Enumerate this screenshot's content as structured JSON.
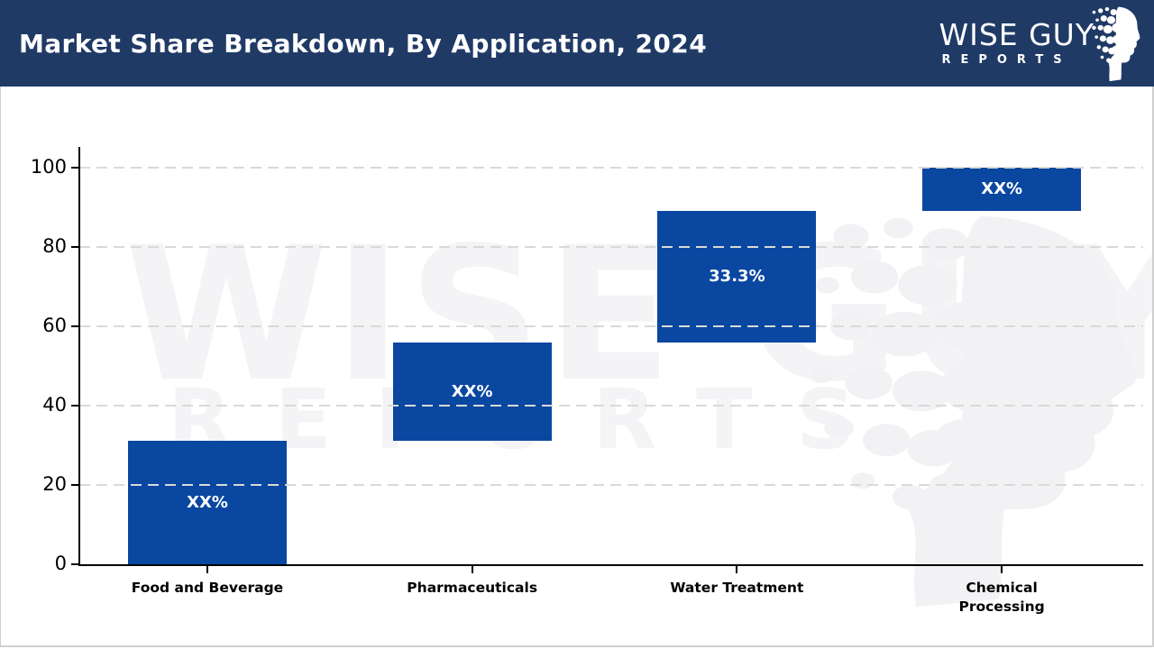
{
  "header": {
    "title": "Market Share Breakdown, By Application, 2024",
    "logo": {
      "line1": "WISE GUY",
      "line2": "REPORTS",
      "icon": "dotted-head-profile-icon"
    }
  },
  "watermark": {
    "line1": "WISE GUY",
    "line2": "REPORTS",
    "icon": "dotted-head-profile-watermark-icon"
  },
  "colors": {
    "header_bg": "#203a66",
    "bar": "#0a47a0",
    "grid": "#d9d9d9",
    "axis": "#000000",
    "bar_label_text": "#ffffff",
    "tick_text": "#000000",
    "watermark": "#f4f4f6"
  },
  "chart_data": {
    "type": "bar",
    "subtype": "waterfall-floating-bars",
    "title": "Market Share Breakdown, By Application, 2024",
    "categories": [
      "Food and Beverage",
      "Pharmaceuticals",
      "Water Treatment",
      "Chemical Processing"
    ],
    "segments": [
      {
        "category": "Food and Beverage",
        "category_lines": [
          "Food and Beverage"
        ],
        "start": 0,
        "end": 31.2,
        "label": "XX%"
      },
      {
        "category": "Pharmaceuticals",
        "category_lines": [
          "Pharmaceuticals"
        ],
        "start": 31.2,
        "end": 55.9,
        "label": "XX%"
      },
      {
        "category": "Water Treatment",
        "category_lines": [
          "Water Treatment"
        ],
        "start": 55.9,
        "end": 89.2,
        "label": "33.3%"
      },
      {
        "category": "Chemical Processing",
        "category_lines": [
          "Chemical",
          "Processing"
        ],
        "start": 89.2,
        "end": 100,
        "label": "XX%"
      }
    ],
    "yticks": [
      0,
      20,
      40,
      60,
      80,
      100
    ],
    "ylim": [
      0,
      105
    ],
    "xlabel": "",
    "ylabel": "",
    "grid": "horizontal dashed, drawn over bars",
    "legend": "none",
    "bar_color": "#0a47a0"
  }
}
